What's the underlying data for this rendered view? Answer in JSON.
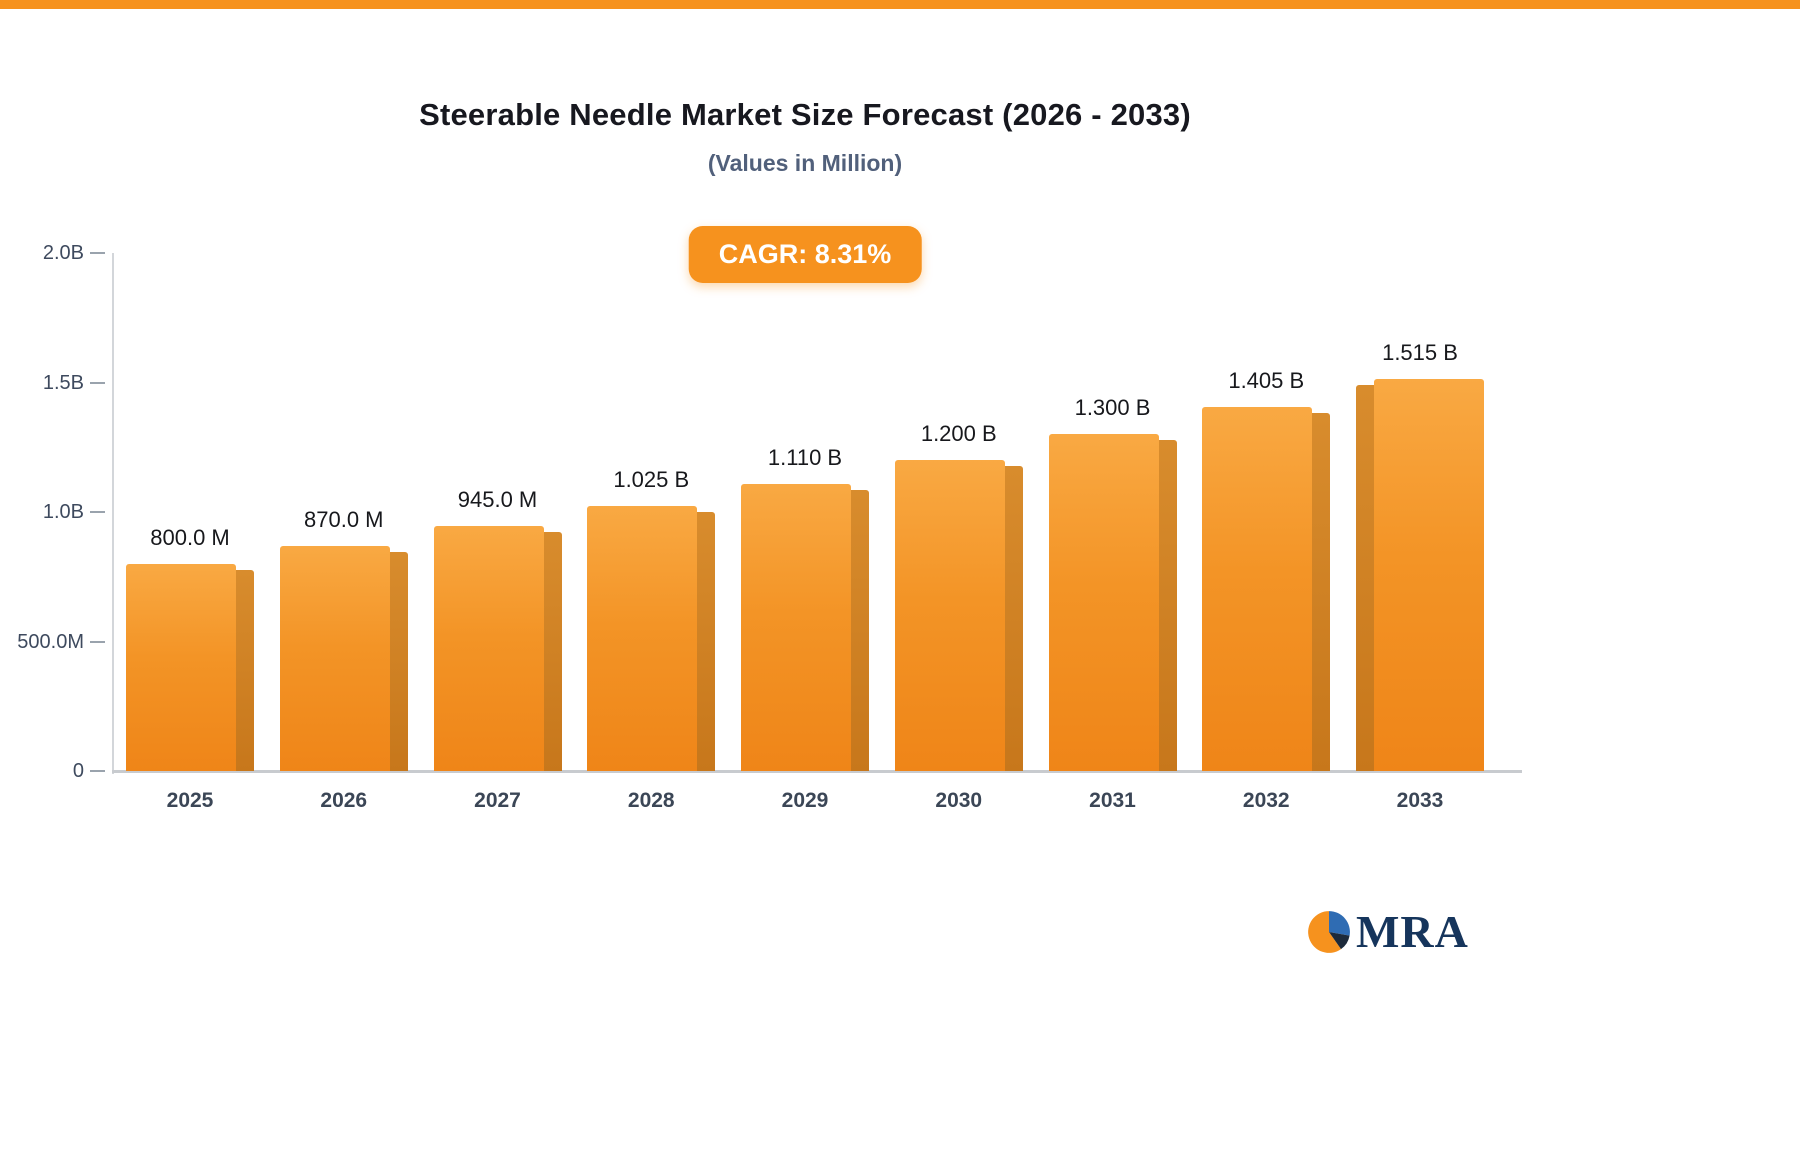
{
  "branding": {
    "logo_text": "MRA",
    "logo_icon": "pie-chart-icon"
  },
  "chart_data": {
    "type": "bar",
    "title": "Steerable Needle Market Size Forecast (2026 - 2033)",
    "subtitle": "(Values in Million)",
    "cagr_label": "CAGR: 8.31%",
    "categories": [
      "2025",
      "2026",
      "2027",
      "2028",
      "2029",
      "2030",
      "2031",
      "2032",
      "2033"
    ],
    "values_millions": [
      800,
      870,
      945,
      1025,
      1110,
      1200,
      1300,
      1405,
      1515
    ],
    "bar_labels": [
      "800.0 M",
      "870.0 M",
      "945.0 M",
      "1.025 B",
      "1.110 B",
      "1.200 B",
      "1.300 B",
      "1.405 B",
      "1.515 B"
    ],
    "y_ticks": [
      {
        "label": "2.0B",
        "value": 2000
      },
      {
        "label": "1.5B",
        "value": 1500
      },
      {
        "label": "1.0B",
        "value": 1000
      },
      {
        "label": "500.0M",
        "value": 500
      },
      {
        "label": "0",
        "value": 0
      }
    ],
    "ylim": [
      0,
      2000
    ],
    "grid": false,
    "legend": "none",
    "colors": {
      "bar_top": "#f9a943",
      "bar_bottom": "#ef8518",
      "bar_side": "#c7771b",
      "accent": "#f6921e",
      "title_text": "#17181f",
      "subtitle_text": "#51607b",
      "logo_navy": "#16355c",
      "logo_blue": "#2f6cb3"
    }
  }
}
